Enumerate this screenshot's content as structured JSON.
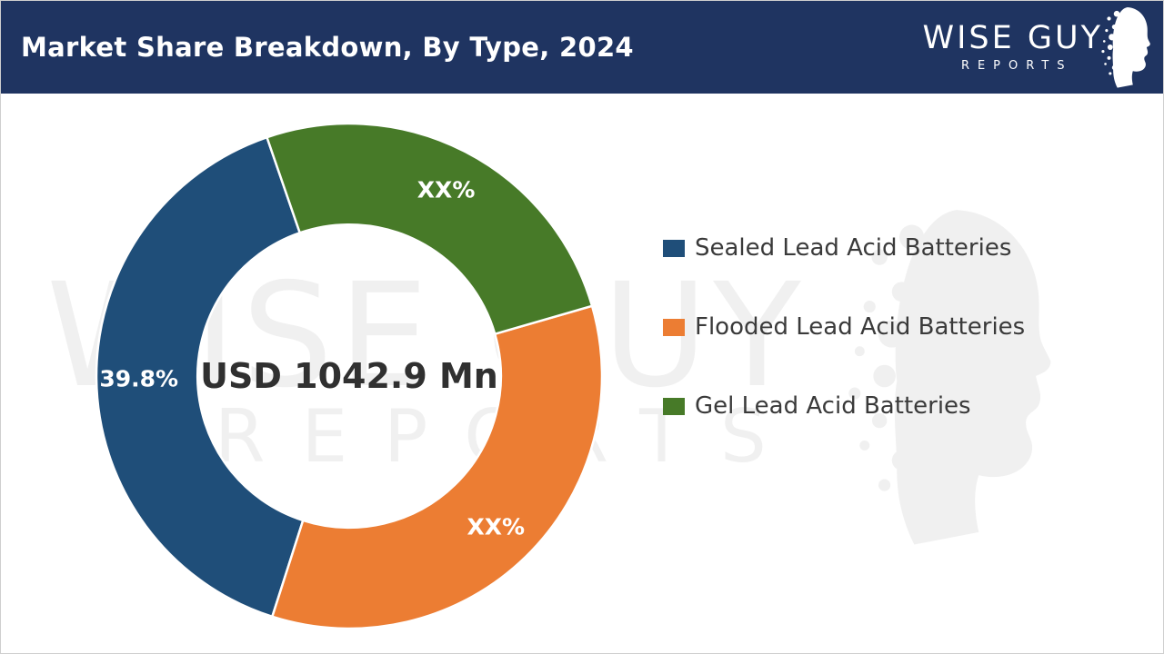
{
  "header": {
    "title": "Market Share Breakdown, By Type, 2024",
    "bg_color": "#1f3461",
    "logo": {
      "line1": "WISE GUY",
      "line2": "REPORTS",
      "icon": "dotted-head-profile-icon"
    }
  },
  "watermark": {
    "line1": "WISE GUY",
    "line2": "REPORTS",
    "icon": "dotted-head-profile-icon"
  },
  "chart_data": {
    "type": "pie",
    "subtype": "donut",
    "title": "Market Share Breakdown, By Type, 2024",
    "center_label": "USD 1042.9 Mn",
    "start_angle_deg": 109,
    "direction": "counterclockwise",
    "inner_radius_ratio": 0.6,
    "label_radius_ratio": 0.832,
    "slice_gap_color": "#ffffff",
    "legend_position": "right",
    "series": [
      {
        "name": "Sealed Lead Acid Batteries",
        "value_pct": 39.8,
        "label": "39.8%",
        "color": "#1f4e79"
      },
      {
        "name": "Flooded Lead Acid Batteries",
        "value_pct": 34.4,
        "label": "XX%",
        "color": "#ec7d33"
      },
      {
        "name": "Gel Lead Acid Batteries",
        "value_pct": 25.8,
        "label": "XX%",
        "color": "#477a28"
      }
    ]
  }
}
